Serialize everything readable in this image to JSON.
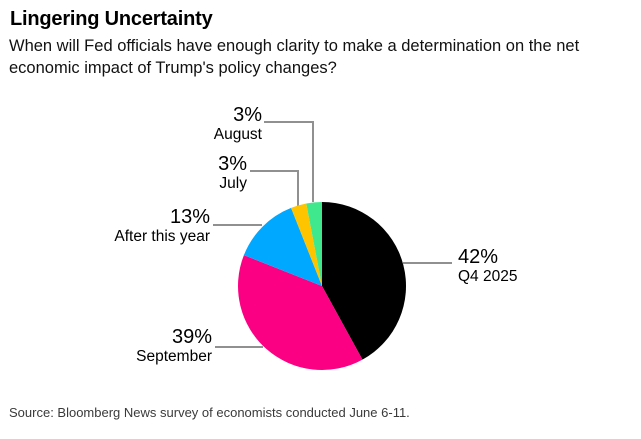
{
  "chart_data": {
    "type": "pie",
    "title": "Lingering Uncertainty",
    "subtitle": "When will Fed officials have enough clarity to make a determination on the net economic impact of Trump's policy changes?",
    "unit": "percent",
    "start_angle": "12 o'clock",
    "direction": "clockwise",
    "label_style": "callout-with-leader-lines",
    "leader_line_color": "#909090",
    "slices": [
      {
        "label": "Q4 2025",
        "value": 42,
        "pct_label": "42%",
        "color": "#000000"
      },
      {
        "label": "September",
        "value": 39,
        "pct_label": "39%",
        "color": "#fc0084"
      },
      {
        "label": "After this year",
        "value": 13,
        "pct_label": "13%",
        "color": "#00a8ff"
      },
      {
        "label": "July",
        "value": 3,
        "pct_label": "3%",
        "color": "#ffc400"
      },
      {
        "label": "August",
        "value": 3,
        "pct_label": "3%",
        "color": "#3fe88c"
      }
    ],
    "source": "Source: Bloomberg News survey of economists conducted June 6-11."
  }
}
